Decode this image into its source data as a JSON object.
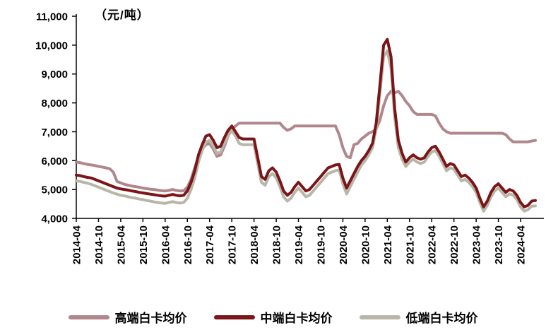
{
  "chart_data": {
    "type": "line",
    "title": "",
    "unit_label": "（元/吨）",
    "xlabel": "",
    "ylabel": "元/吨",
    "ylim": [
      4000,
      11000
    ],
    "grid": false,
    "legend_position": "bottom",
    "y_ticks": [
      {
        "value": 11000,
        "label": "11,000"
      },
      {
        "value": 10000,
        "label": "10,000"
      },
      {
        "value": 9000,
        "label": "9,000"
      },
      {
        "value": 8000,
        "label": "8,000"
      },
      {
        "value": 7000,
        "label": "7,000"
      },
      {
        "value": 6000,
        "label": "6,000"
      },
      {
        "value": 5000,
        "label": "5,000"
      },
      {
        "value": 4000,
        "label": "4,000"
      }
    ],
    "x_ticks": [
      {
        "month": 0,
        "label": "2014-04"
      },
      {
        "month": 6,
        "label": "2014-10"
      },
      {
        "month": 12,
        "label": "2015-04"
      },
      {
        "month": 18,
        "label": "2015-10"
      },
      {
        "month": 24,
        "label": "2016-04"
      },
      {
        "month": 30,
        "label": "2016-10"
      },
      {
        "month": 36,
        "label": "2017-04"
      },
      {
        "month": 42,
        "label": "2017-10"
      },
      {
        "month": 48,
        "label": "2018-04"
      },
      {
        "month": 54,
        "label": "2018-10"
      },
      {
        "month": 60,
        "label": "2019-04"
      },
      {
        "month": 66,
        "label": "2019-10"
      },
      {
        "month": 72,
        "label": "2020-04"
      },
      {
        "month": 78,
        "label": "2020-10"
      },
      {
        "month": 84,
        "label": "2021-04"
      },
      {
        "month": 90,
        "label": "2021-10"
      },
      {
        "month": 96,
        "label": "2022-04"
      },
      {
        "month": 102,
        "label": "2022-10"
      },
      {
        "month": 108,
        "label": "2023-04"
      },
      {
        "month": 114,
        "label": "2023-10"
      },
      {
        "month": 120,
        "label": "2024-04"
      }
    ],
    "x_start": "2014-04",
    "x_end": "2024-08",
    "x_unit": "month",
    "draw_order": [
      0,
      2,
      1
    ],
    "series": [
      {
        "name": "高端白卡均价",
        "color": "#B0878C",
        "values": [
          5950,
          5930,
          5900,
          5870,
          5850,
          5830,
          5800,
          5780,
          5750,
          5720,
          5600,
          5280,
          5230,
          5180,
          5150,
          5120,
          5100,
          5080,
          5050,
          5030,
          5010,
          5000,
          4980,
          4960,
          4950,
          4970,
          5000,
          4970,
          4950,
          4960,
          5080,
          5350,
          5750,
          6150,
          6400,
          6550,
          6600,
          6400,
          6150,
          6200,
          6500,
          6850,
          7100,
          7200,
          7300,
          7300,
          7300,
          7300,
          7300,
          7300,
          7300,
          7300,
          7300,
          7300,
          7300,
          7300,
          7150,
          7050,
          7100,
          7200,
          7200,
          7200,
          7200,
          7200,
          7200,
          7200,
          7200,
          7200,
          7200,
          7200,
          7200,
          6900,
          6450,
          6150,
          6100,
          6550,
          6600,
          6750,
          6850,
          6950,
          7000,
          7100,
          7400,
          7900,
          8250,
          8400,
          8350,
          8400,
          8250,
          8050,
          7900,
          7700,
          7600,
          7600,
          7600,
          7600,
          7600,
          7550,
          7300,
          7100,
          7000,
          6950,
          6950,
          6950,
          6950,
          6950,
          6950,
          6950,
          6950,
          6950,
          6950,
          6950,
          6950,
          6950,
          6950,
          6950,
          6900,
          6750,
          6650,
          6650,
          6650,
          6650,
          6650,
          6680,
          6700
        ]
      },
      {
        "name": "中端白卡均价",
        "color": "#7B1518",
        "values": [
          5500,
          5480,
          5450,
          5420,
          5400,
          5350,
          5300,
          5250,
          5200,
          5150,
          5100,
          5050,
          5020,
          5000,
          4980,
          4950,
          4930,
          4900,
          4880,
          4860,
          4840,
          4820,
          4800,
          4780,
          4770,
          4800,
          4830,
          4800,
          4780,
          4800,
          4950,
          5250,
          5650,
          6200,
          6550,
          6850,
          6900,
          6700,
          6450,
          6500,
          6800,
          7050,
          7200,
          7000,
          6800,
          6750,
          6750,
          6750,
          6750,
          6100,
          5450,
          5350,
          5650,
          5750,
          5600,
          5300,
          4950,
          4800,
          4900,
          5100,
          5250,
          5100,
          4950,
          5000,
          5150,
          5300,
          5450,
          5600,
          5750,
          5800,
          5850,
          5870,
          5400,
          5050,
          5300,
          5550,
          5800,
          6000,
          6150,
          6350,
          6600,
          7300,
          8600,
          10000,
          10200,
          9600,
          7800,
          6700,
          6250,
          5950,
          6100,
          6200,
          6100,
          6050,
          6100,
          6300,
          6450,
          6500,
          6300,
          6050,
          5800,
          5900,
          5850,
          5650,
          5450,
          5500,
          5400,
          5250,
          5050,
          4700,
          4400,
          4600,
          4900,
          5100,
          5200,
          5050,
          4900,
          5000,
          4950,
          4800,
          4550,
          4400,
          4450,
          4600,
          4620
        ]
      },
      {
        "name": "低端白卡均价",
        "color": "#B8B6A8",
        "values": [
          5300,
          5280,
          5250,
          5220,
          5180,
          5130,
          5080,
          5030,
          4980,
          4930,
          4880,
          4840,
          4800,
          4780,
          4750,
          4720,
          4700,
          4670,
          4650,
          4620,
          4600,
          4570,
          4550,
          4530,
          4520,
          4550,
          4580,
          4550,
          4530,
          4550,
          4700,
          5000,
          5400,
          5950,
          6350,
          6650,
          6700,
          6500,
          6250,
          6300,
          6600,
          6850,
          7050,
          6850,
          6600,
          6550,
          6550,
          6550,
          6550,
          5900,
          5250,
          5150,
          5450,
          5550,
          5400,
          5100,
          4750,
          4600,
          4700,
          4900,
          5050,
          4900,
          4750,
          4800,
          4950,
          5100,
          5250,
          5400,
          5550,
          5600,
          5650,
          5680,
          5200,
          4850,
          5100,
          5350,
          5600,
          5850,
          6000,
          6200,
          6450,
          7100,
          8300,
          9600,
          9800,
          9200,
          7500,
          6450,
          6050,
          5800,
          5950,
          6050,
          5950,
          5900,
          5950,
          6150,
          6300,
          6350,
          6150,
          5900,
          5650,
          5750,
          5700,
          5500,
          5300,
          5350,
          5250,
          5100,
          4900,
          4550,
          4250,
          4450,
          4750,
          4950,
          5050,
          4900,
          4750,
          4850,
          4800,
          4650,
          4400,
          4250,
          4300,
          4420,
          4430
        ]
      }
    ]
  },
  "legend": {
    "items": [
      {
        "label": "高端白卡均价"
      },
      {
        "label": "中端白卡均价"
      },
      {
        "label": "低端白卡均价"
      }
    ]
  }
}
